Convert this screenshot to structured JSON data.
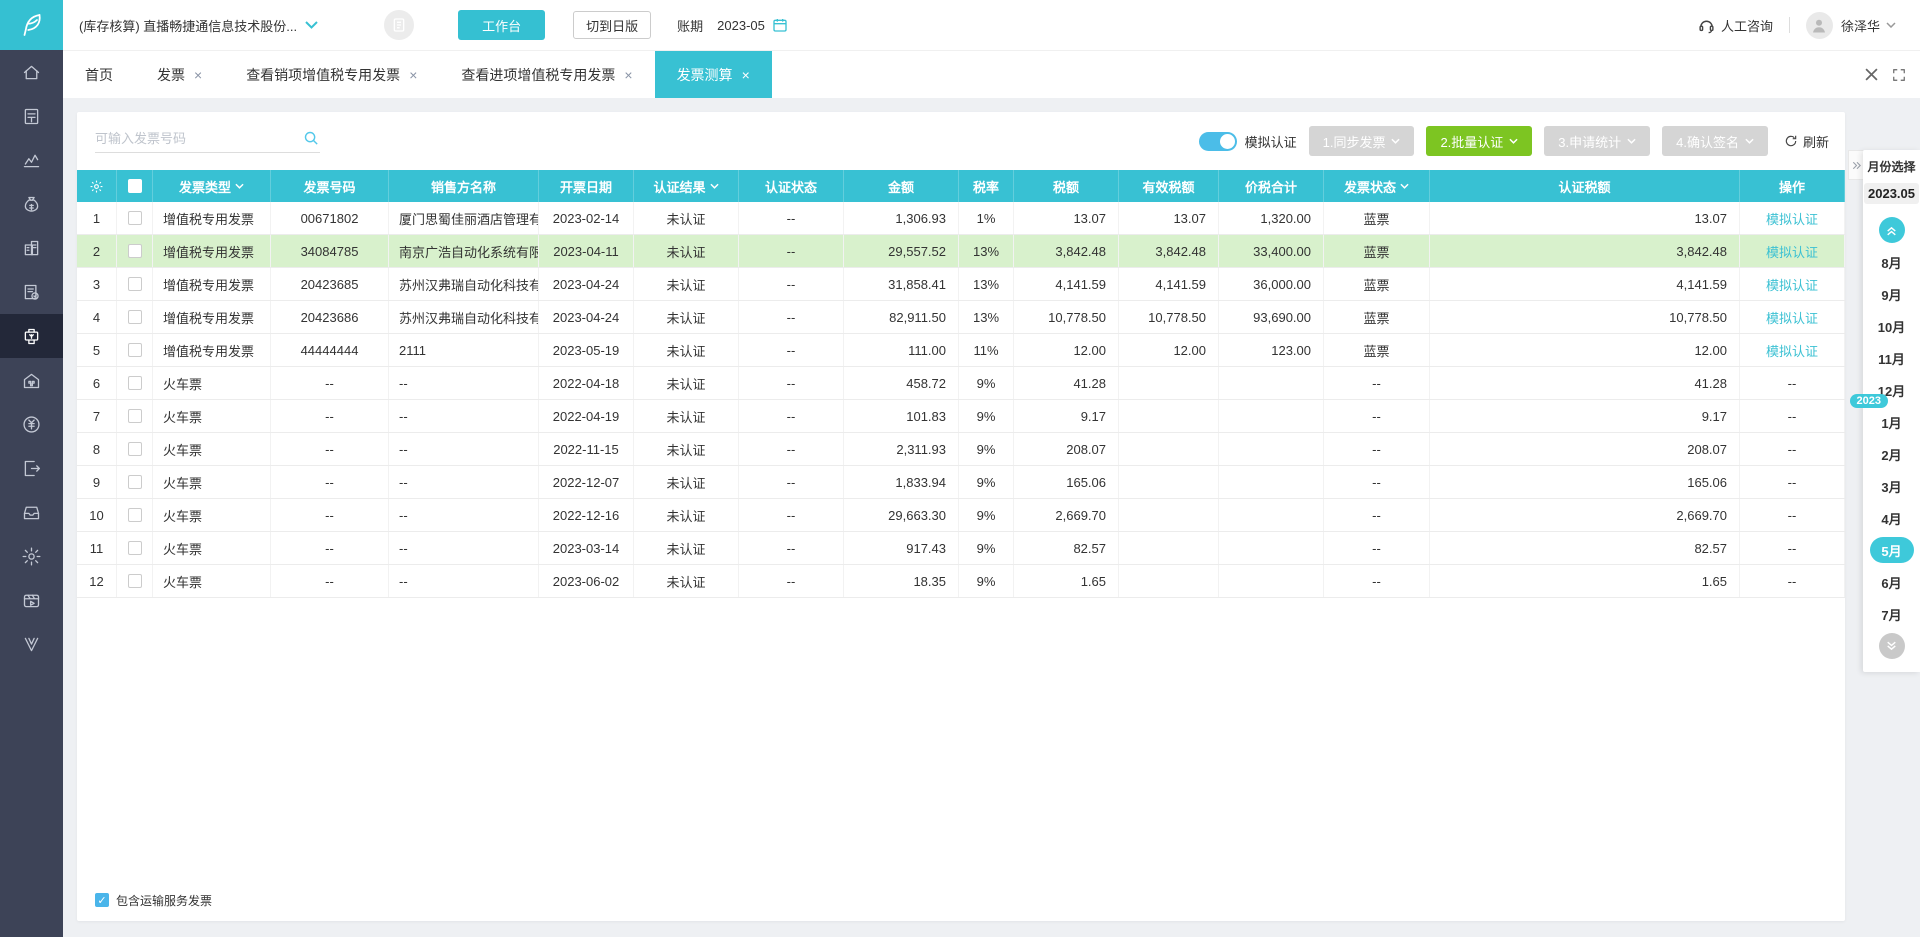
{
  "colors": {
    "accent": "#38c1d3",
    "green_button": "#7dc522",
    "toggle_blue": "#4bbde8",
    "row_highlight": "#d8f1cc",
    "sidebar_bg": "#3d4357"
  },
  "topbar": {
    "company": "(库存核算) 直播畅捷通信息技术股份...",
    "workbench_button": "工作台",
    "switch_version_button": "切到日版",
    "period_label": "账期",
    "period_value": "2023-05",
    "support_label": "人工咨询",
    "username": "徐泽华"
  },
  "tabbar": {
    "tabs": [
      {
        "label": "首页",
        "closable": false,
        "active": false
      },
      {
        "label": "发票",
        "closable": true,
        "active": false
      },
      {
        "label": "查看销项增值税专用发票",
        "closable": true,
        "active": false
      },
      {
        "label": "查看进项增值税专用发票",
        "closable": true,
        "active": false
      },
      {
        "label": "发票测算",
        "closable": true,
        "active": true
      }
    ]
  },
  "toolbar": {
    "search_placeholder": "可输入发票号码",
    "toggle_label": "模拟认证",
    "buttons": [
      {
        "label": "1.同步发票",
        "style": "disabled"
      },
      {
        "label": "2.批量认证",
        "style": "green"
      },
      {
        "label": "3.申请统计",
        "style": "disabled"
      },
      {
        "label": "4.确认签名",
        "style": "disabled"
      }
    ],
    "refresh_label": "刷新"
  },
  "table": {
    "columns": [
      {
        "key": "idx",
        "label": "",
        "sort": false
      },
      {
        "key": "cb",
        "label": "",
        "sort": false
      },
      {
        "key": "type",
        "label": "发票类型",
        "sort": true
      },
      {
        "key": "no",
        "label": "发票号码",
        "sort": false
      },
      {
        "key": "seller",
        "label": "销售方名称",
        "sort": false
      },
      {
        "key": "date",
        "label": "开票日期",
        "sort": false
      },
      {
        "key": "result",
        "label": "认证结果",
        "sort": true
      },
      {
        "key": "status",
        "label": "认证状态",
        "sort": false
      },
      {
        "key": "amount",
        "label": "金额",
        "sort": false
      },
      {
        "key": "rate",
        "label": "税率",
        "sort": false
      },
      {
        "key": "tax",
        "label": "税额",
        "sort": false
      },
      {
        "key": "valid_tax",
        "label": "有效税额",
        "sort": false
      },
      {
        "key": "total",
        "label": "价税合计",
        "sort": false
      },
      {
        "key": "inv_status",
        "label": "发票状态",
        "sort": true
      },
      {
        "key": "cert_tax",
        "label": "认证税额",
        "sort": false
      },
      {
        "key": "action",
        "label": "操作",
        "sort": false
      }
    ],
    "rows": [
      {
        "idx": "1",
        "type": "增值税专用发票",
        "no": "00671802",
        "seller": "厦门思蜀佳丽酒店管理有限",
        "date": "2023-02-14",
        "result": "未认证",
        "status": "--",
        "amount": "1,306.93",
        "rate": "1%",
        "tax": "13.07",
        "valid_tax": "13.07",
        "total": "1,320.00",
        "inv_status": "蓝票",
        "cert_tax": "13.07",
        "action": "模拟认证",
        "highlight": false
      },
      {
        "idx": "2",
        "type": "增值税专用发票",
        "no": "34084785",
        "seller": "南京广浩自动化系统有限责",
        "date": "2023-04-11",
        "result": "未认证",
        "status": "--",
        "amount": "29,557.52",
        "rate": "13%",
        "tax": "3,842.48",
        "valid_tax": "3,842.48",
        "total": "33,400.00",
        "inv_status": "蓝票",
        "cert_tax": "3,842.48",
        "action": "模拟认证",
        "highlight": true
      },
      {
        "idx": "3",
        "type": "增值税专用发票",
        "no": "20423685",
        "seller": "苏州汉弗瑞自动化科技有限",
        "date": "2023-04-24",
        "result": "未认证",
        "status": "--",
        "amount": "31,858.41",
        "rate": "13%",
        "tax": "4,141.59",
        "valid_tax": "4,141.59",
        "total": "36,000.00",
        "inv_status": "蓝票",
        "cert_tax": "4,141.59",
        "action": "模拟认证",
        "highlight": false
      },
      {
        "idx": "4",
        "type": "增值税专用发票",
        "no": "20423686",
        "seller": "苏州汉弗瑞自动化科技有限",
        "date": "2023-04-24",
        "result": "未认证",
        "status": "--",
        "amount": "82,911.50",
        "rate": "13%",
        "tax": "10,778.50",
        "valid_tax": "10,778.50",
        "total": "93,690.00",
        "inv_status": "蓝票",
        "cert_tax": "10,778.50",
        "action": "模拟认证",
        "highlight": false
      },
      {
        "idx": "5",
        "type": "增值税专用发票",
        "no": "44444444",
        "seller": "2111",
        "date": "2023-05-19",
        "result": "未认证",
        "status": "--",
        "amount": "111.00",
        "rate": "11%",
        "tax": "12.00",
        "valid_tax": "12.00",
        "total": "123.00",
        "inv_status": "蓝票",
        "cert_tax": "12.00",
        "action": "模拟认证",
        "highlight": false
      },
      {
        "idx": "6",
        "type": "火车票",
        "no": "--",
        "seller": "--",
        "date": "2022-04-18",
        "result": "未认证",
        "status": "--",
        "amount": "458.72",
        "rate": "9%",
        "tax": "41.28",
        "valid_tax": "",
        "total": "",
        "inv_status": "--",
        "cert_tax": "41.28",
        "action": "--",
        "highlight": false
      },
      {
        "idx": "7",
        "type": "火车票",
        "no": "--",
        "seller": "--",
        "date": "2022-04-19",
        "result": "未认证",
        "status": "--",
        "amount": "101.83",
        "rate": "9%",
        "tax": "9.17",
        "valid_tax": "",
        "total": "",
        "inv_status": "--",
        "cert_tax": "9.17",
        "action": "--",
        "highlight": false
      },
      {
        "idx": "8",
        "type": "火车票",
        "no": "--",
        "seller": "--",
        "date": "2022-11-15",
        "result": "未认证",
        "status": "--",
        "amount": "2,311.93",
        "rate": "9%",
        "tax": "208.07",
        "valid_tax": "",
        "total": "",
        "inv_status": "--",
        "cert_tax": "208.07",
        "action": "--",
        "highlight": false
      },
      {
        "idx": "9",
        "type": "火车票",
        "no": "--",
        "seller": "--",
        "date": "2022-12-07",
        "result": "未认证",
        "status": "--",
        "amount": "1,833.94",
        "rate": "9%",
        "tax": "165.06",
        "valid_tax": "",
        "total": "",
        "inv_status": "--",
        "cert_tax": "165.06",
        "action": "--",
        "highlight": false
      },
      {
        "idx": "10",
        "type": "火车票",
        "no": "--",
        "seller": "--",
        "date": "2022-12-16",
        "result": "未认证",
        "status": "--",
        "amount": "29,663.30",
        "rate": "9%",
        "tax": "2,669.70",
        "valid_tax": "",
        "total": "",
        "inv_status": "--",
        "cert_tax": "2,669.70",
        "action": "--",
        "highlight": false
      },
      {
        "idx": "11",
        "type": "火车票",
        "no": "--",
        "seller": "--",
        "date": "2023-03-14",
        "result": "未认证",
        "status": "--",
        "amount": "917.43",
        "rate": "9%",
        "tax": "82.57",
        "valid_tax": "",
        "total": "",
        "inv_status": "--",
        "cert_tax": "82.57",
        "action": "--",
        "highlight": false
      },
      {
        "idx": "12",
        "type": "火车票",
        "no": "--",
        "seller": "--",
        "date": "2023-06-02",
        "result": "未认证",
        "status": "--",
        "amount": "18.35",
        "rate": "9%",
        "tax": "1.65",
        "valid_tax": "",
        "total": "",
        "inv_status": "--",
        "cert_tax": "1.65",
        "action": "--",
        "highlight": false
      }
    ]
  },
  "month_panel": {
    "title": "月份选择",
    "current": "2023.05",
    "year_badge": "2023",
    "badge_before": "1月",
    "months": [
      "8月",
      "9月",
      "10月",
      "11月",
      "12月",
      "1月",
      "2月",
      "3月",
      "4月",
      "5月",
      "6月",
      "7月"
    ],
    "selected": "5月"
  },
  "footer": {
    "transport_checkbox_label": "包含运输服务发票",
    "checked": true
  },
  "sidebar": {
    "items": [
      "home",
      "voucher",
      "chart",
      "money-bag",
      "building",
      "report",
      "invoice",
      "warehouse",
      "tax",
      "export",
      "inbox",
      "settings",
      "video",
      "logo-v"
    ],
    "active": "invoice"
  }
}
